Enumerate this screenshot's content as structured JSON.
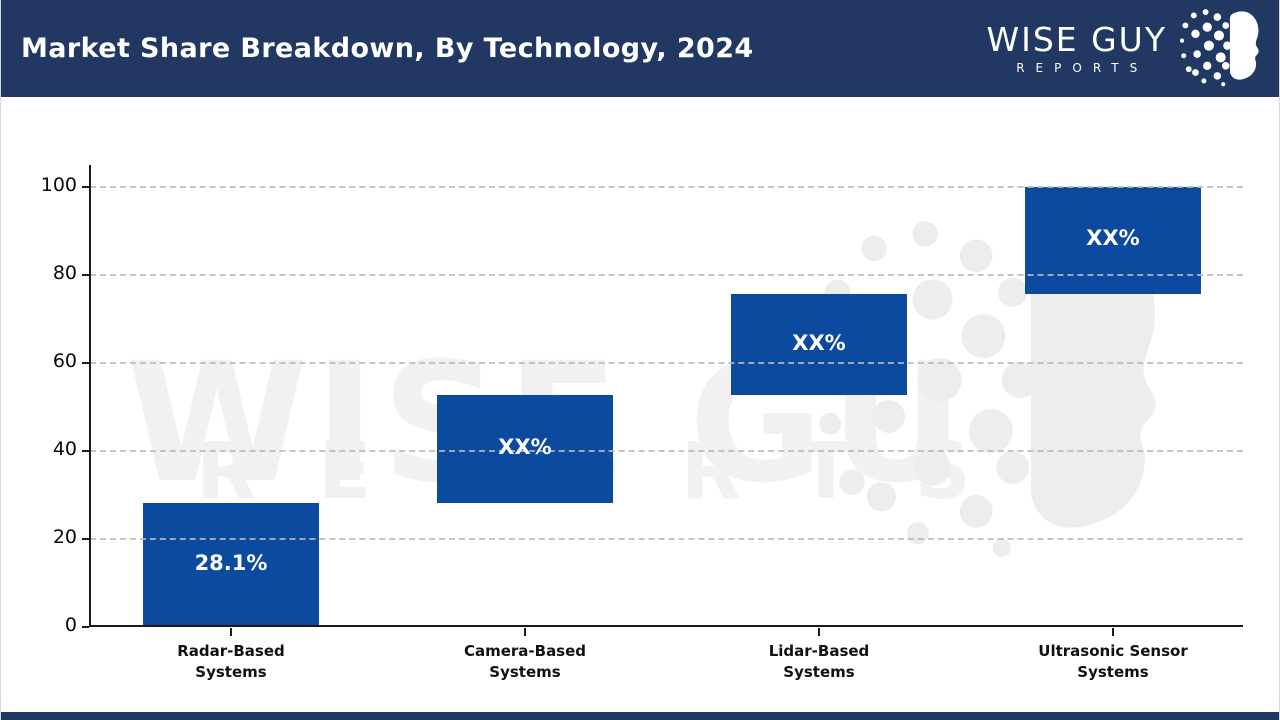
{
  "header": {
    "title": "Market Share Breakdown, By Technology, 2024",
    "bg_color": "#213863",
    "logo": {
      "wordmark": "WISE GUY",
      "subtext": "REPORTS"
    }
  },
  "watermark": {
    "wordmark": "WISE GU",
    "subtext": "REPORTS"
  },
  "chart_data": {
    "type": "bar",
    "variant": "floating-waterfall",
    "categories": [
      "Radar-Based\nSystems",
      "Camera-Based\nSystems",
      "Lidar-Based\nSystems",
      "Ultrasonic Sensor\nSystems"
    ],
    "bars": [
      {
        "start": 0,
        "end": 28.1,
        "label": "28.1%"
      },
      {
        "start": 28.1,
        "end": 52.7,
        "label": "XX%"
      },
      {
        "start": 52.7,
        "end": 75.7,
        "label": "XX%"
      },
      {
        "start": 75.7,
        "end": 100,
        "label": "XX%"
      }
    ],
    "ylim": [
      0,
      100
    ],
    "yticks": [
      0,
      20,
      40,
      60,
      80,
      100
    ],
    "grid": "dashed-horizontal-over-bars",
    "legend": "none",
    "bar_color": "#0b4a9e",
    "bar_label_color": "#ffffff",
    "axis_color": "#1a1a1a"
  }
}
